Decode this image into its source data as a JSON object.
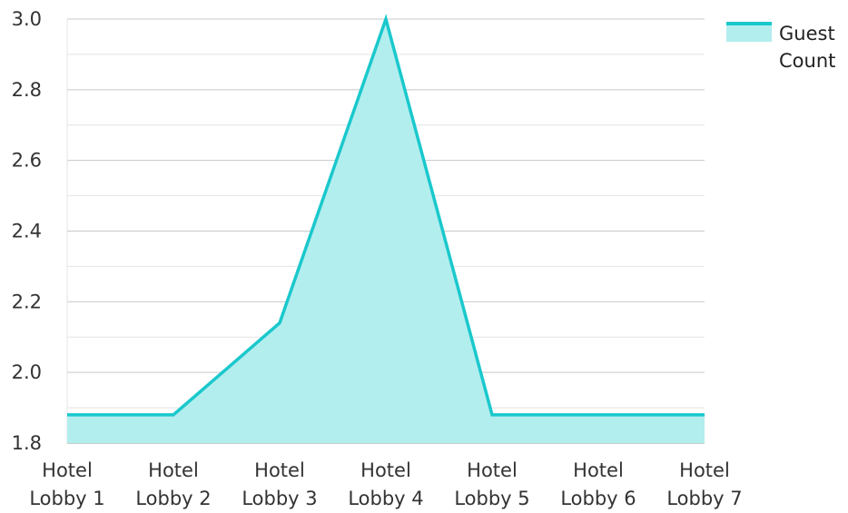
{
  "chart_data": {
    "type": "area",
    "title": "",
    "xlabel": "",
    "ylabel": "",
    "categories": [
      "Hotel Lobby 1",
      "Hotel Lobby 2",
      "Hotel Lobby 3",
      "Hotel Lobby 4",
      "Hotel Lobby 5",
      "Hotel Lobby 6",
      "Hotel Lobby 7"
    ],
    "series": [
      {
        "name": "Guest Count",
        "values": [
          1.88,
          1.88,
          2.14,
          3.0,
          1.88,
          1.88,
          1.88
        ]
      }
    ],
    "ylim": [
      1.8,
      3.0
    ],
    "yticks": [
      "1.8",
      "2.0",
      "2.2",
      "2.4",
      "2.6",
      "2.8",
      "3.0"
    ],
    "grid": true,
    "legend": "top-right",
    "colors": {
      "line": "#1ac8cc",
      "fill": "#b3eeee",
      "grid": "#c8c8c8",
      "minor_grid": "#e4e4e4",
      "axis": "#9a9a9a"
    }
  }
}
